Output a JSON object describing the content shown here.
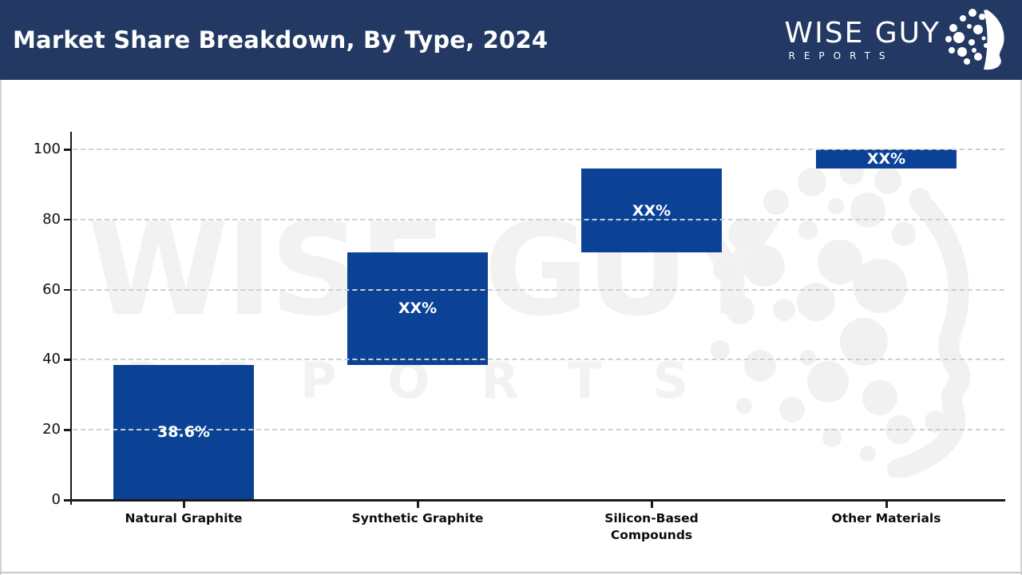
{
  "header": {
    "title": "Market Share Breakdown, By Type, 2024",
    "logo": {
      "line1": "WISE GUY",
      "line2": "REPORTS"
    }
  },
  "watermark": {
    "line1": "WISE GUY",
    "line2": "REPORTS"
  },
  "colors": {
    "header_bg": "#233963",
    "bar_blue": "#0b4295",
    "grid_gray": "#cfcfcf",
    "watermark_gray": "#f2f2f2"
  },
  "chart_data": {
    "type": "bar",
    "subtype": "floating-stacked-percentage",
    "title": "Market Share Breakdown, By Type, 2024",
    "categories": [
      "Natural Graphite",
      "Synthetic Graphite",
      "Silicon-Based\nCompounds",
      "Other Materials"
    ],
    "segments": [
      {
        "category": "Natural Graphite",
        "start": 0,
        "end": 38.6,
        "label": "38.6%"
      },
      {
        "category": "Synthetic Graphite",
        "start": 38.6,
        "end": 70.6,
        "label": "XX%"
      },
      {
        "category": "Silicon-Based Compounds",
        "start": 70.6,
        "end": 94.5,
        "label": "XX%"
      },
      {
        "category": "Other Materials",
        "start": 94.5,
        "end": 100,
        "label": "XX%"
      }
    ],
    "yticks": [
      0,
      20,
      40,
      60,
      80,
      100
    ],
    "ylim": [
      0,
      104
    ],
    "xlabel": "",
    "ylabel": "",
    "grid": "horizontal-dashed",
    "legend": "none",
    "bar_color": "#0b4295",
    "label_color": "#ffffff"
  }
}
